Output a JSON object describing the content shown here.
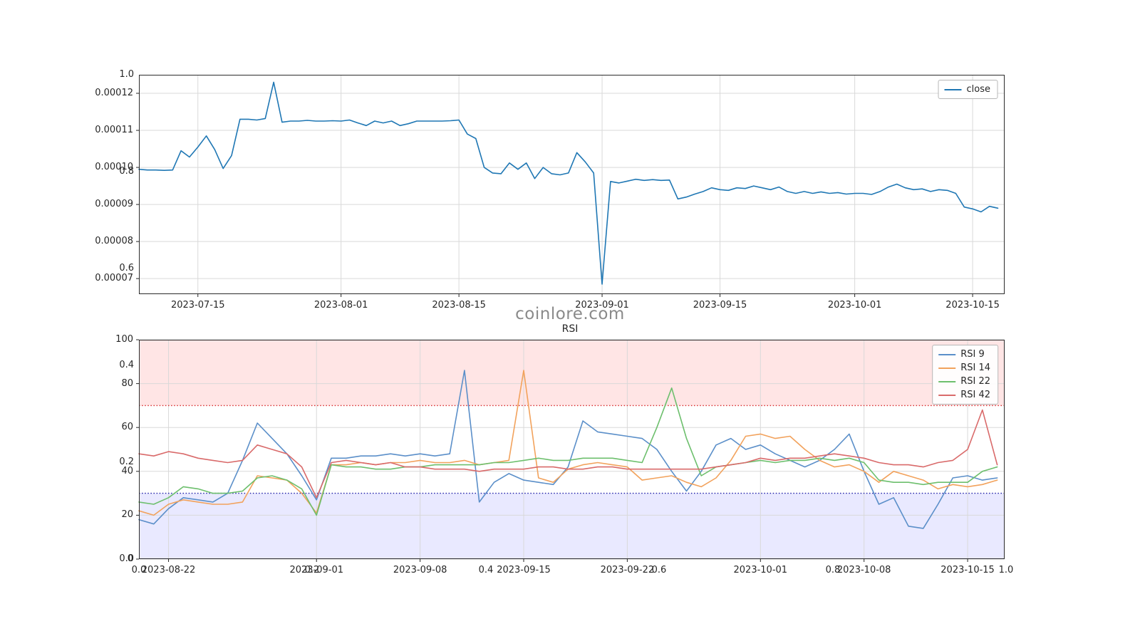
{
  "watermark": "coinlore.com",
  "figure": {
    "background": "#ffffff",
    "overlay_axis_left": [
      "1.0",
      "0.8",
      "0.6",
      "0.4",
      "0.2",
      "0.0"
    ],
    "overlay_axis_bottom": [
      "0.0",
      "0.2",
      "0.4",
      "0.6",
      "0.8",
      "1.0"
    ]
  },
  "chart_data": [
    {
      "id": "price",
      "type": "line",
      "title": "",
      "legend_position": "upper right",
      "grid": true,
      "xlabel": "",
      "ylabel": "",
      "ylim": [
        6.58e-05,
        0.000125
      ],
      "yticks": [
        {
          "v": 7e-05,
          "label": "0.00007"
        },
        {
          "v": 8e-05,
          "label": "0.00008"
        },
        {
          "v": 9e-05,
          "label": "0.00009"
        },
        {
          "v": 0.0001,
          "label": "0.00010"
        },
        {
          "v": 0.00011,
          "label": "0.00011"
        },
        {
          "v": 0.00012,
          "label": "0.00012"
        }
      ],
      "xlim": [
        0,
        102.8
      ],
      "xticks": [
        {
          "v": 7,
          "label": "2023-07-15"
        },
        {
          "v": 24,
          "label": "2023-08-01"
        },
        {
          "v": 38,
          "label": "2023-08-15"
        },
        {
          "v": 55,
          "label": "2023-09-01"
        },
        {
          "v": 69,
          "label": "2023-09-15"
        },
        {
          "v": 85,
          "label": "2023-10-01"
        },
        {
          "v": 99,
          "label": "2023-10-15"
        }
      ],
      "dates_start": "2023-07-08",
      "dates_step_days": 1,
      "series": [
        {
          "name": "close",
          "color": "#1f77b4",
          "values": [
            9.95e-05,
            9.93e-05,
            9.93e-05,
            9.92e-05,
            9.93e-05,
            0.0001045,
            0.0001028,
            0.0001055,
            0.0001085,
            0.0001048,
            9.97e-05,
            0.0001032,
            0.000113,
            0.000113,
            0.0001128,
            0.0001132,
            0.000123,
            0.0001122,
            0.0001125,
            0.0001125,
            0.0001127,
            0.0001125,
            0.0001125,
            0.0001126,
            0.0001125,
            0.0001128,
            0.000112,
            0.0001113,
            0.0001125,
            0.000112,
            0.0001125,
            0.0001113,
            0.0001118,
            0.0001125,
            0.0001125,
            0.0001125,
            0.0001125,
            0.0001126,
            0.0001128,
            0.000109,
            0.0001078,
            0.0001,
            9.85e-05,
            9.83e-05,
            0.0001012,
            9.95e-05,
            0.0001012,
            9.7e-05,
            0.0001,
            9.83e-05,
            9.8e-05,
            9.85e-05,
            0.000104,
            0.0001015,
            9.85e-05,
            6.85e-05,
            9.62e-05,
            9.58e-05,
            9.63e-05,
            9.68e-05,
            9.65e-05,
            9.67e-05,
            9.65e-05,
            9.66e-05,
            9.15e-05,
            9.2e-05,
            9.28e-05,
            9.35e-05,
            9.45e-05,
            9.4e-05,
            9.38e-05,
            9.45e-05,
            9.43e-05,
            9.5e-05,
            9.45e-05,
            9.4e-05,
            9.47e-05,
            9.35e-05,
            9.3e-05,
            9.35e-05,
            9.3e-05,
            9.34e-05,
            9.3e-05,
            9.32e-05,
            9.28e-05,
            9.3e-05,
            9.3e-05,
            9.27e-05,
            9.35e-05,
            9.47e-05,
            9.55e-05,
            9.45e-05,
            9.4e-05,
            9.42e-05,
            9.35e-05,
            9.4e-05,
            9.38e-05,
            9.3e-05,
            8.93e-05,
            8.88e-05,
            8.8e-05,
            8.95e-05,
            8.9e-05
          ]
        }
      ]
    },
    {
      "id": "rsi",
      "type": "line",
      "title": "RSI",
      "legend_position": "upper right",
      "grid": true,
      "xlabel": "",
      "ylabel": "",
      "ylim": [
        0,
        100
      ],
      "yticks": [
        {
          "v": 0,
          "label": "0"
        },
        {
          "v": 20,
          "label": "20"
        },
        {
          "v": 40,
          "label": "40"
        },
        {
          "v": 60,
          "label": "60"
        },
        {
          "v": 80,
          "label": "80"
        },
        {
          "v": 100,
          "label": "100"
        }
      ],
      "xlim": [
        0,
        58.5
      ],
      "xticks": [
        {
          "v": 2,
          "label": "2023-08-22"
        },
        {
          "v": 12,
          "label": "2023-09-01"
        },
        {
          "v": 19,
          "label": "2023-09-08"
        },
        {
          "v": 26,
          "label": "2023-09-15"
        },
        {
          "v": 33,
          "label": "2023-09-22"
        },
        {
          "v": 42,
          "label": "2023-10-01"
        },
        {
          "v": 49,
          "label": "2023-10-08"
        },
        {
          "v": 56,
          "label": "2023-10-15"
        }
      ],
      "dates_start": "2023-08-20",
      "dates_step_days": 1,
      "bands": [
        {
          "from": 70,
          "to": 100,
          "color": "rgba(255,70,70,0.14)"
        },
        {
          "from": 0,
          "to": 30,
          "color": "rgba(70,70,255,0.12)"
        }
      ],
      "hlines": [
        {
          "v": 70,
          "color": "#d62728",
          "style": "dotted"
        },
        {
          "v": 30,
          "color": "#1a1aa6",
          "style": "dotted"
        }
      ],
      "series": [
        {
          "name": "RSI 9",
          "color": "#5b8fc9",
          "values": [
            18,
            16,
            23,
            28,
            27,
            26,
            30,
            45,
            62,
            55,
            48,
            38,
            27,
            46,
            46,
            47,
            47,
            48,
            47,
            48,
            47,
            48,
            86,
            26,
            35,
            39,
            36,
            35,
            34,
            42,
            63,
            58,
            57,
            56,
            55,
            50,
            40,
            31,
            40,
            52,
            55,
            50,
            52,
            48,
            45,
            42,
            45,
            50,
            57,
            40,
            25,
            28,
            15,
            14,
            25,
            37,
            38,
            36,
            37
          ]
        },
        {
          "name": "RSI 14",
          "color": "#f2a25c",
          "values": [
            22,
            20,
            25,
            27,
            26,
            25,
            25,
            26,
            38,
            37,
            36,
            30,
            21,
            43,
            43,
            44,
            43,
            44,
            44,
            45,
            44,
            44,
            45,
            43,
            44,
            45,
            86,
            37,
            35,
            41,
            43,
            44,
            43,
            42,
            36,
            37,
            38,
            35,
            33,
            37,
            45,
            56,
            57,
            55,
            56,
            50,
            45,
            42,
            43,
            40,
            35,
            40,
            38,
            36,
            32,
            34,
            33,
            34,
            36
          ]
        },
        {
          "name": "RSI 22",
          "color": "#6dbf6d",
          "values": [
            26,
            25,
            28,
            33,
            32,
            30,
            30,
            31,
            37,
            38,
            36,
            32,
            20,
            43,
            42,
            42,
            41,
            41,
            42,
            42,
            43,
            43,
            43,
            43,
            44,
            44,
            45,
            46,
            45,
            45,
            46,
            46,
            46,
            45,
            44,
            60,
            78,
            55,
            38,
            42,
            43,
            44,
            45,
            44,
            45,
            45,
            46,
            45,
            46,
            44,
            36,
            35,
            35,
            34,
            35,
            35,
            35,
            40,
            42
          ]
        },
        {
          "name": "RSI 42",
          "color": "#d96a6a",
          "values": [
            48,
            47,
            49,
            48,
            46,
            45,
            44,
            45,
            52,
            50,
            48,
            42,
            28,
            44,
            45,
            44,
            43,
            44,
            42,
            42,
            41,
            41,
            41,
            40,
            41,
            41,
            41,
            42,
            42,
            41,
            41,
            42,
            42,
            41,
            41,
            41,
            41,
            41,
            41,
            42,
            43,
            44,
            46,
            45,
            46,
            46,
            47,
            48,
            47,
            46,
            44,
            43,
            43,
            42,
            44,
            45,
            50,
            68,
            43
          ]
        }
      ]
    }
  ]
}
